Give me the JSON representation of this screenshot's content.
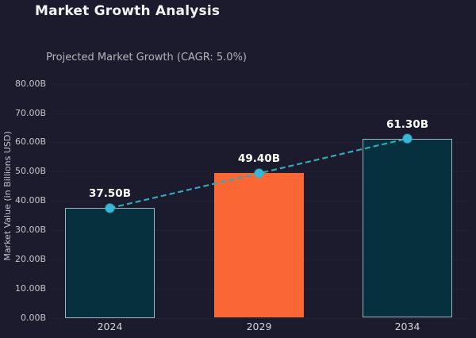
{
  "header": {
    "title": "Market Growth Analysis",
    "subtitle": "Projected Market Growth (CAGR: 5.0%)"
  },
  "colors": {
    "background": "#1c1a2d",
    "teal_bar": "#07303f",
    "teal_bar_border": "#9cb3c0",
    "orange_bar": "#fa6634",
    "trend_line": "#35a8b8",
    "marker": "#38b7d9",
    "value_label_text": "#ffffff",
    "axis_text": "#c7c7d0"
  },
  "chart_data": {
    "type": "bar",
    "title": "Market Growth Analysis",
    "subtitle": "Projected Market Growth (CAGR: 5.0%)",
    "categories": [
      "2024",
      "2029",
      "2034"
    ],
    "values": [
      37.5,
      49.4,
      61.3
    ],
    "bar_labels": [
      "37.50B",
      "49.40B",
      "61.30B"
    ],
    "bar_colors": [
      "#07303f",
      "#fa6634",
      "#07303f"
    ],
    "bar_bordered": [
      true,
      false,
      true
    ],
    "xlabel": "",
    "ylabel": "Market Value (in Billions USD)",
    "ylim": [
      0,
      80
    ],
    "ytick_step": 10,
    "ytick_labels": [
      "0.00B",
      "10.00B",
      "20.00B",
      "30.00B",
      "40.00B",
      "50.00B",
      "60.00B",
      "70.00B",
      "80.00B"
    ],
    "grid": "faint-dotted-horizontal",
    "legend": "none",
    "overlay": {
      "type": "dashed-trend-line-with-markers",
      "connects": "bar tops",
      "line_color": "#35a8b8",
      "marker_color": "#38b7d9"
    }
  }
}
